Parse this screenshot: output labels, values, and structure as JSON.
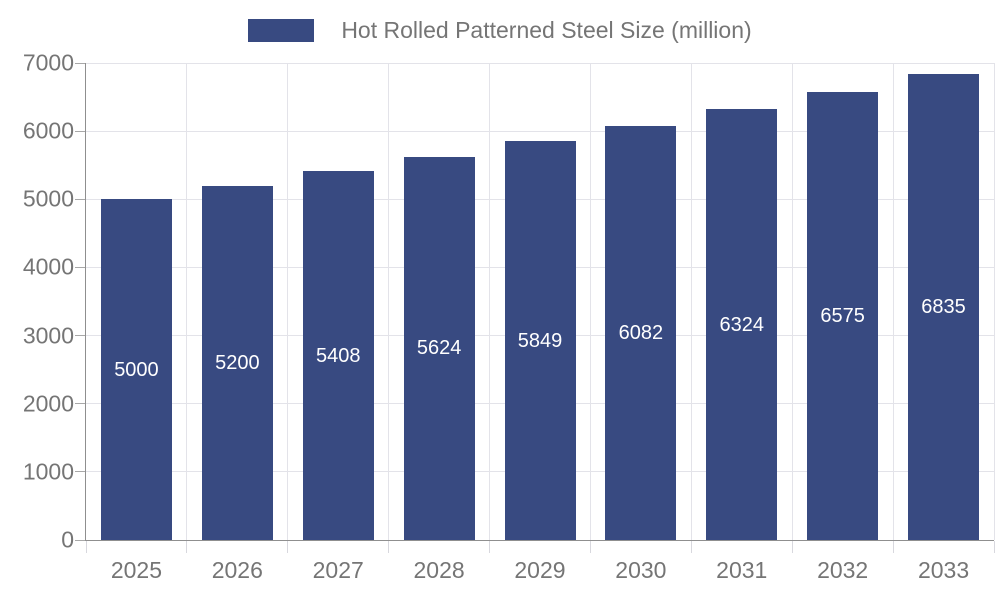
{
  "chart_data": {
    "type": "bar",
    "title": "Hot Rolled Patterned Steel Size (million)",
    "categories": [
      "2025",
      "2026",
      "2027",
      "2028",
      "2029",
      "2030",
      "2031",
      "2032",
      "2033"
    ],
    "values": [
      5000,
      5200,
      5408,
      5624,
      5849,
      6082,
      6324,
      6575,
      6835
    ],
    "xlabel": "",
    "ylabel": "",
    "ylim": [
      0,
      7000
    ],
    "yticks": [
      0,
      1000,
      2000,
      3000,
      4000,
      5000,
      6000,
      7000
    ],
    "grid": true,
    "legend_position": "top-center",
    "value_label_position": "inside-center"
  },
  "colors": {
    "bar": "#384A81",
    "bar_label": "#FFFFFF",
    "axis_line": "#8F8F8F",
    "grid_line": "#E3E3E9",
    "tick_mark_left": "#A8A8A8",
    "tick_mark_bottom": "#D8D8DE",
    "tick_label": "#757575",
    "legend_text": "#757575",
    "background": "#FFFFFF"
  }
}
